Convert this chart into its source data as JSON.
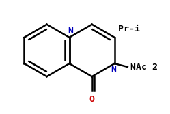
{
  "background_color": "#ffffff",
  "line_color": "#000000",
  "N_color": "#0000bb",
  "O_color": "#cc0000",
  "label_Pr_i": "Pr-i",
  "label_N1": "N",
  "label_N2": "N",
  "label_O": "O",
  "label_NAc2": "NAc 2",
  "figsize": [
    2.49,
    1.67
  ],
  "dpi": 100
}
